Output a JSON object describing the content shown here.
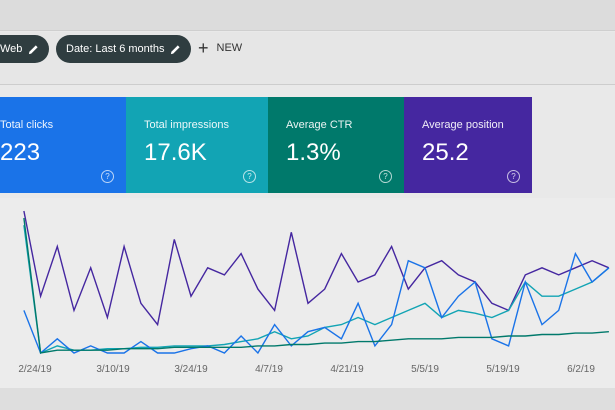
{
  "filters": {
    "chips": [
      {
        "label": "Web",
        "icon": "pencil-icon"
      },
      {
        "label": "Date: Last 6 months",
        "icon": "pencil-icon"
      }
    ],
    "new_label": "NEW",
    "new_icon": "plus-icon"
  },
  "cards": [
    {
      "label": "Total clicks",
      "value": "223",
      "color": "#1a73e8",
      "help": "?"
    },
    {
      "label": "Total impressions",
      "value": "17.6K",
      "color": "#12a4b4",
      "help": "?"
    },
    {
      "label": "Average CTR",
      "value": "1.3%",
      "color": "#00796b",
      "help": "?"
    },
    {
      "label": "Average position",
      "value": "25.2",
      "color": "#4527a0",
      "help": "?"
    }
  ],
  "chart_data": {
    "type": "line",
    "grid": false,
    "x_ticks": [
      "2/24/19",
      "3/10/19",
      "3/24/19",
      "4/7/19",
      "4/21/19",
      "5/5/19",
      "5/19/19",
      "6/2/19"
    ],
    "x": [
      "2/22/19",
      "2/25/19",
      "2/28/19",
      "3/3/19",
      "3/6/19",
      "3/9/19",
      "3/12/19",
      "3/15/19",
      "3/18/19",
      "3/21/19",
      "3/24/19",
      "3/27/19",
      "3/30/19",
      "4/2/19",
      "4/5/19",
      "4/8/19",
      "4/11/19",
      "4/14/19",
      "4/17/19",
      "4/20/19",
      "4/23/19",
      "4/26/19",
      "4/29/19",
      "5/2/19",
      "5/5/19",
      "5/8/19",
      "5/11/19",
      "5/14/19",
      "5/17/19",
      "5/20/19",
      "5/23/19",
      "5/26/19",
      "5/29/19",
      "6/1/19",
      "6/4/19",
      "6/7/19"
    ],
    "series": [
      {
        "color": "#4527a0",
        "values": [
          100,
          40,
          75,
          30,
          60,
          25,
          75,
          35,
          20,
          80,
          40,
          60,
          55,
          70,
          45,
          30,
          85,
          35,
          45,
          70,
          50,
          55,
          75,
          45,
          60,
          65,
          55,
          50,
          35,
          30,
          55,
          60,
          55,
          60,
          65,
          60
        ]
      },
      {
        "color": "#12a4b4",
        "values": [
          90,
          0,
          5,
          2,
          2,
          3,
          3,
          4,
          4,
          5,
          5,
          5,
          6,
          8,
          10,
          15,
          10,
          12,
          18,
          20,
          25,
          20,
          25,
          30,
          35,
          25,
          30,
          28,
          25,
          30,
          50,
          40,
          40,
          45,
          50,
          60
        ]
      },
      {
        "color": "#1a73e8",
        "values": [
          30,
          0,
          10,
          0,
          5,
          0,
          0,
          8,
          0,
          0,
          3,
          5,
          0,
          12,
          0,
          20,
          5,
          15,
          18,
          10,
          35,
          5,
          20,
          65,
          60,
          25,
          40,
          50,
          10,
          5,
          50,
          20,
          30,
          70,
          50,
          60
        ]
      },
      {
        "color": "#00796b",
        "values": [
          95,
          0,
          2,
          2,
          2,
          2,
          3,
          3,
          3,
          4,
          4,
          4,
          4,
          4,
          5,
          5,
          6,
          6,
          7,
          7,
          8,
          8,
          9,
          10,
          10,
          10,
          11,
          11,
          11,
          12,
          12,
          13,
          13,
          14,
          14,
          15
        ]
      }
    ]
  }
}
